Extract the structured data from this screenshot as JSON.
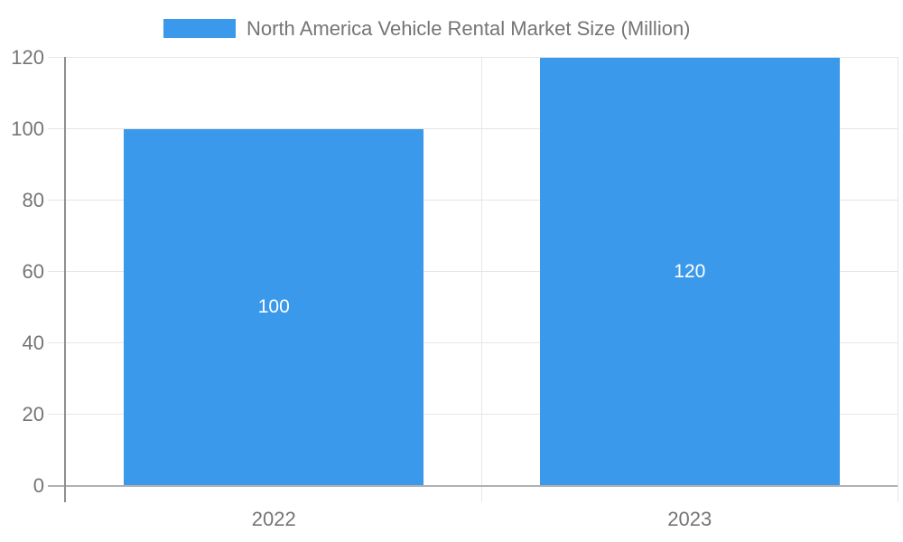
{
  "colors": {
    "bar": "#3b99ec",
    "text": "#757575",
    "grid": "#e6e6e6",
    "axis": "#8f8f8f",
    "baseline": "#b0b0b0",
    "bar_label": "#ffffff",
    "background": "#ffffff"
  },
  "legend": {
    "label": "North America Vehicle Rental Market Size (Million)"
  },
  "chart_data": {
    "type": "bar",
    "title": "North America Vehicle Rental Market Size (Million)",
    "categories": [
      "2022",
      "2023"
    ],
    "values": [
      100,
      120
    ],
    "data_labels": [
      "100",
      "120"
    ],
    "xlabel": "",
    "ylabel": "",
    "ylim": [
      0,
      120
    ],
    "yticks": [
      0,
      20,
      40,
      60,
      80,
      100,
      120
    ],
    "grid": true,
    "legend_position": "top",
    "series_color": "#3b99ec",
    "bar_label_position": "inside-center"
  }
}
